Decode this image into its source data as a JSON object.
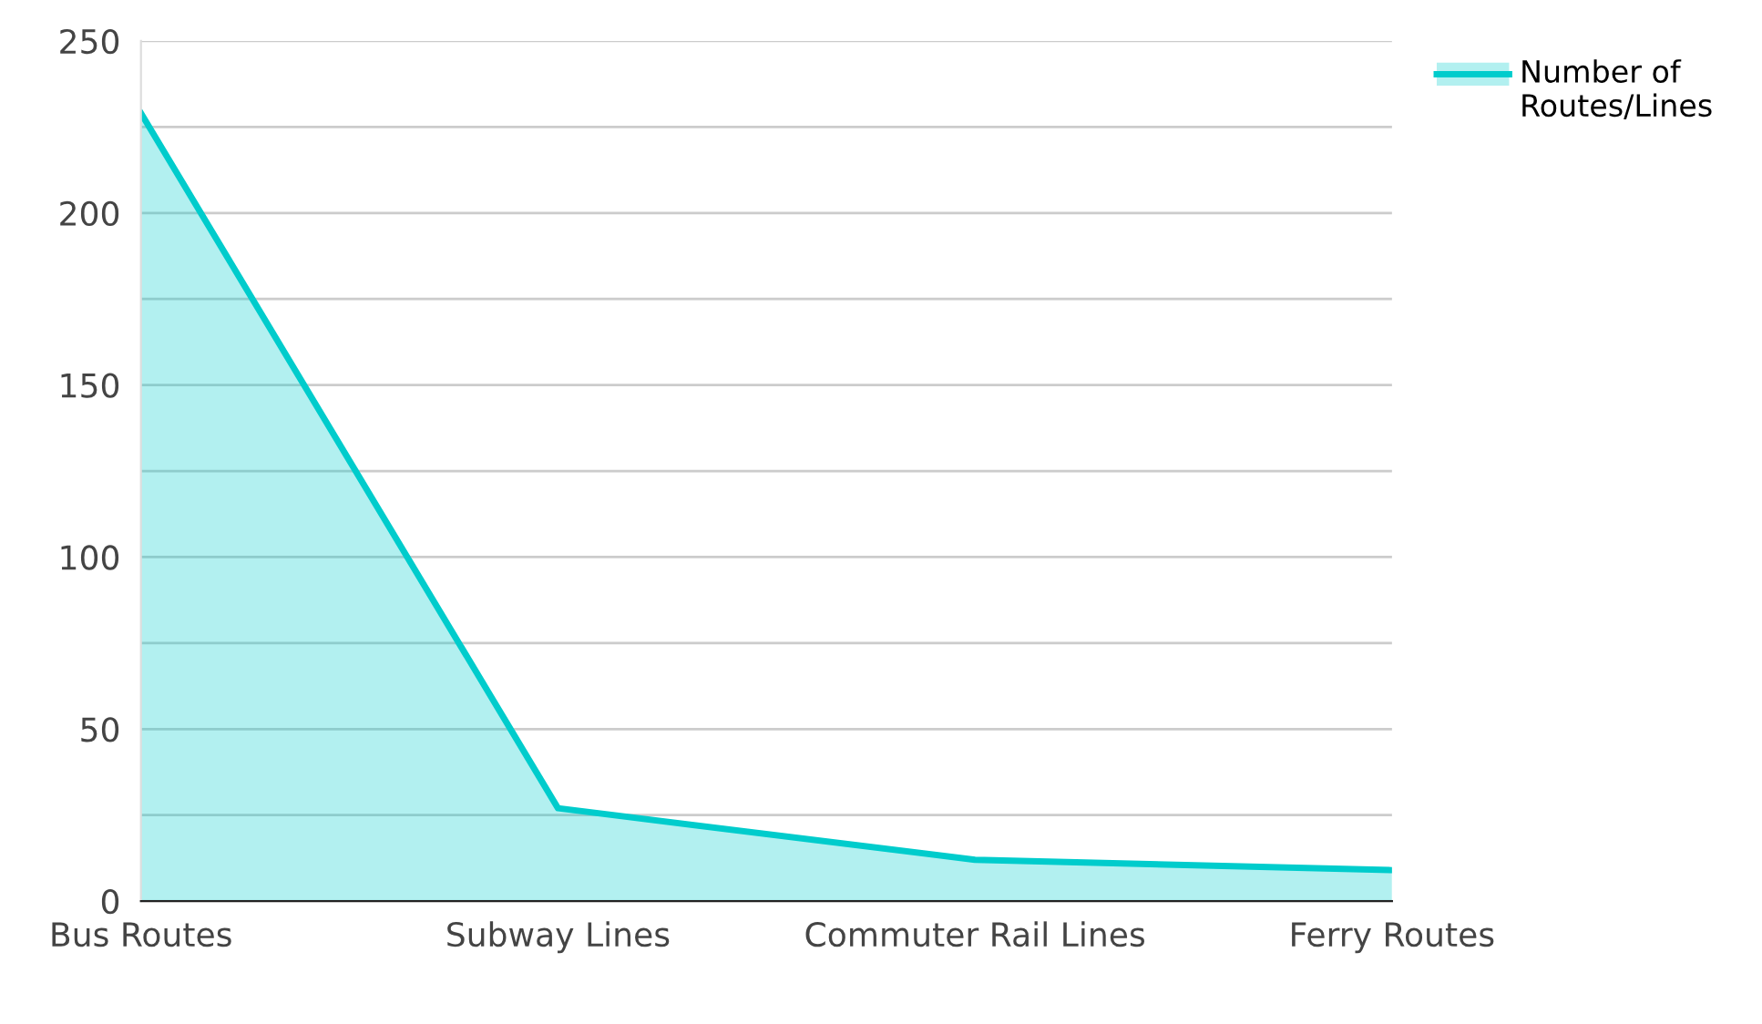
{
  "chart_data": {
    "type": "area",
    "categories": [
      "Bus Routes",
      "Subway Lines",
      "Commuter Rail Lines",
      "Ferry Routes"
    ],
    "series": [
      {
        "name": "Number of Routes/Lines",
        "color": "#00cccc",
        "values": [
          229,
          27,
          12,
          9
        ]
      }
    ],
    "ylim": [
      0,
      250
    ],
    "yticks": [
      0,
      {
        "value": 25,
        "label": null
      },
      50,
      {
        "value": 75,
        "label": null
      },
      100,
      {
        "value": 125,
        "label": null
      },
      150,
      {
        "value": 175,
        "label": null
      },
      200,
      {
        "value": 225,
        "label": null
      },
      250
    ],
    "grid": "y",
    "legend": "top right"
  }
}
